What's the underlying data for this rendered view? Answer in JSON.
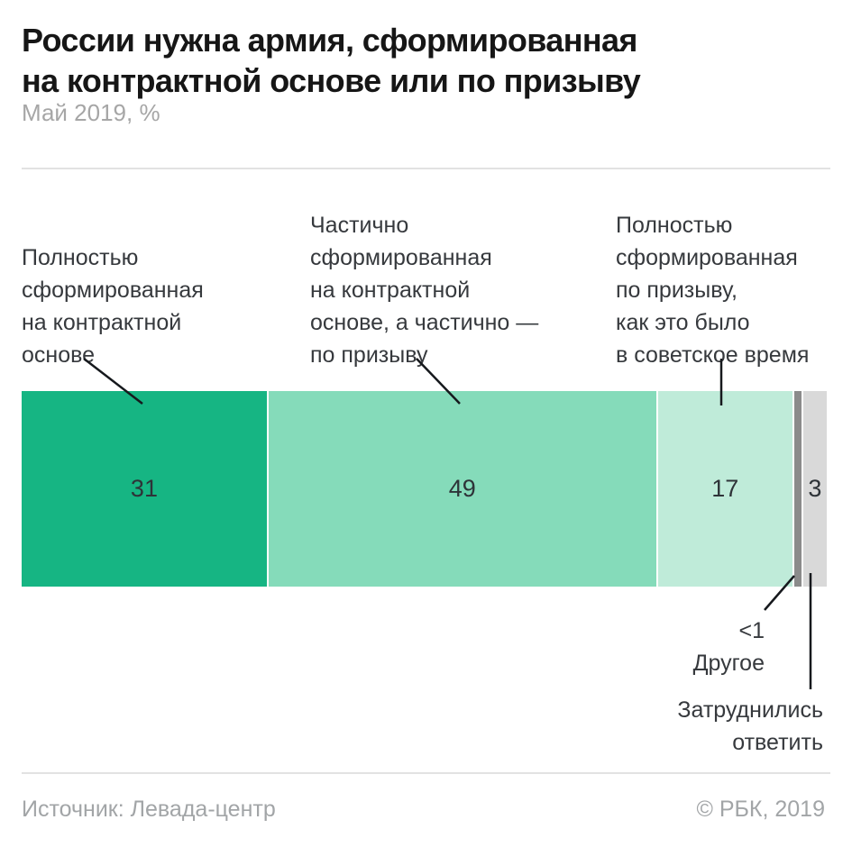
{
  "header": {
    "title": "России нужна армия, сформированная\nна контрактной основе или по призыву",
    "subtitle": "Май 2019, %"
  },
  "chart_data": {
    "type": "bar",
    "stacked": true,
    "orientation": "horizontal",
    "unit": "%",
    "period": "Май 2019",
    "title": "России нужна армия, сформированная на контрактной основе или по призыву",
    "segments": [
      {
        "category": "Полностью сформированная на контрактной основе",
        "value": 31,
        "display": "31",
        "value_inside": "31",
        "color": "#16b583"
      },
      {
        "category": "Частично сформированная на контрактной основе, а частично — по призыву",
        "value": 49,
        "display": "49",
        "value_inside": "49",
        "color": "#85dbba"
      },
      {
        "category": "Полностью сформированная по призыву, как это было в советское время",
        "value": 17,
        "display": "17",
        "value_inside": "17",
        "color": "#bfebd9"
      },
      {
        "category": "Другое",
        "value": 0.9,
        "display": "<1",
        "value_inside": "",
        "color": "#8b8b8b"
      },
      {
        "category": "Затруднились ответить",
        "value": 3,
        "display": "3",
        "value_inside": "3",
        "color": "#d9d9d9"
      }
    ]
  },
  "annotations": {
    "top": [
      {
        "text": "Полностью\nсформированная\nна контрактной\nоснове"
      },
      {
        "text": "Частично\nсформированная\nна контрактной\nоснове, а частично —\nпо призыву"
      },
      {
        "text": "Полностью\nсформированная\nпо призыву,\nкак это было\nв советское время"
      }
    ],
    "bottom": [
      {
        "text": "<1\nДругое"
      },
      {
        "text": "Затруднились\nответить"
      }
    ]
  },
  "footer": {
    "source": "Источник: Левада-центр",
    "credit": "© РБК, 2019"
  }
}
